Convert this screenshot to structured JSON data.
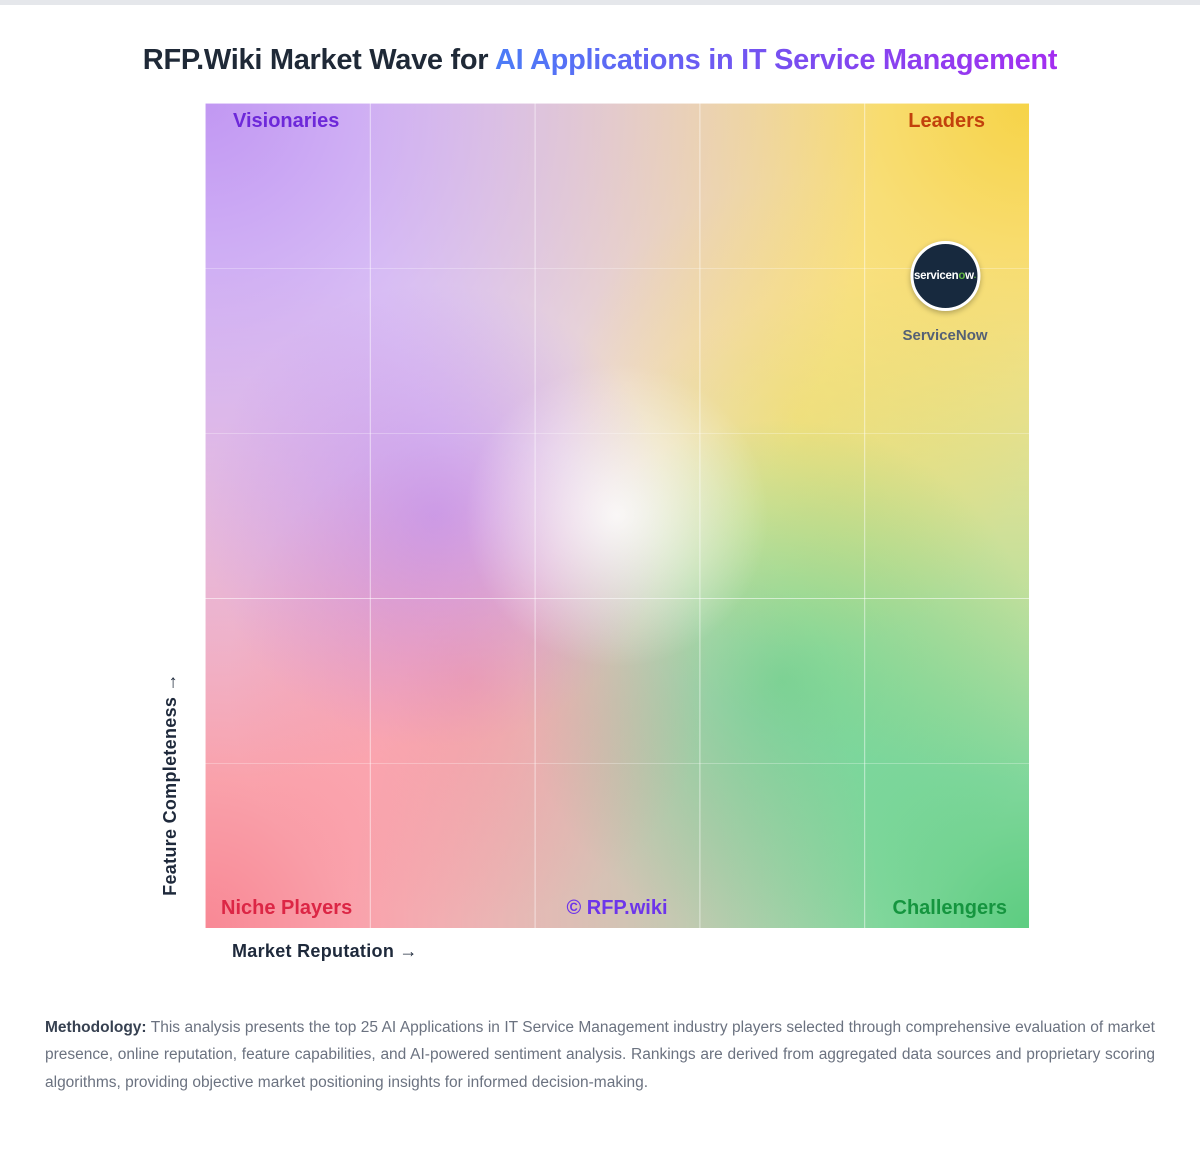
{
  "title": {
    "prefix": "RFP.Wiki Market Wave for ",
    "highlight": "AI Applications in IT Service Management"
  },
  "chart": {
    "x_axis_label": "Market Reputation →",
    "y_axis_label": "Feature Completeness →",
    "watermark": "© RFP.wiki",
    "quadrants": {
      "top_left": "Visionaries",
      "top_right": "Leaders",
      "bottom_left": "Niche Players",
      "bottom_right": "Challengers"
    },
    "colors": {
      "visionaries": "#6d28d9",
      "leaders": "#c2410c",
      "niche_players": "#dc2645",
      "challengers": "#15953f",
      "watermark": "#6d35ea",
      "axis_text": "#1e293b",
      "corner_purple": "#be92f2",
      "corner_yellow": "#f6d13e",
      "corner_red": "#f87e8c",
      "corner_green": "#54ca7a"
    }
  },
  "vendor_marker": {
    "name": "ServiceNow",
    "logo": {
      "pre": "servicen",
      "o": "o",
      "post": "w",
      "dot": "."
    },
    "logo_bg": "#17293e",
    "logo_o_color": "#63b944",
    "name_color": "#546075"
  },
  "methodology": {
    "label": "Methodology:",
    "text": " This analysis presents the top 25 AI Applications in IT Service Management industry players selected through comprehensive evaluation of market presence, online reputation, feature capabilities, and AI-powered sentiment analysis. Rankings are derived from aggregated data sources and proprietary scoring algorithms, providing objective market positioning insights for informed decision-making."
  },
  "chart_data": {
    "type": "scatter",
    "title": "RFP.Wiki Market Wave for AI Applications in IT Service Management",
    "xlabel": "Market Reputation",
    "ylabel": "Feature Completeness",
    "xlim": [
      0,
      1
    ],
    "ylim": [
      0,
      1
    ],
    "grid": "5x5 faint white gridlines over quadrant gradient",
    "legend_position": "none",
    "quadrant_labels": [
      {
        "position": "top-left",
        "label": "Visionaries"
      },
      {
        "position": "top-right",
        "label": "Leaders"
      },
      {
        "position": "bottom-left",
        "label": "Niche Players"
      },
      {
        "position": "bottom-right",
        "label": "Challengers"
      }
    ],
    "points": [
      {
        "name": "ServiceNow",
        "x": 0.9,
        "y": 0.91,
        "quadrant": "Leaders"
      }
    ]
  }
}
